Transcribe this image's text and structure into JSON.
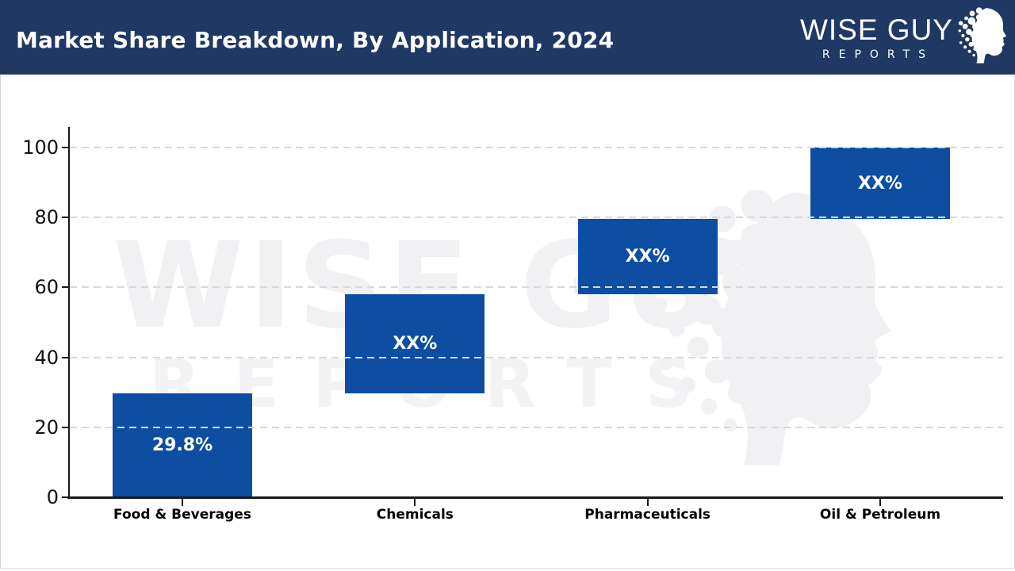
{
  "header": {
    "title": "Market Share Breakdown, By Application, 2024",
    "brand": {
      "name": "WISE GUY",
      "subtitle": "REPORTS"
    }
  },
  "watermark": {
    "line1": "WISE GUY",
    "line2": "REPORTS"
  },
  "colors": {
    "header_bg": "#1f3864",
    "bar": "#0d4da2",
    "gridline": "#d9d9d9",
    "axis": "#1a1a1a",
    "bar_label": "#ffffff",
    "watermark": "#f1f1f4"
  },
  "chart_data": {
    "type": "bar",
    "subtype": "waterfall",
    "title": "Market Share Breakdown, By Application, 2024",
    "categories": [
      "Food & Beverages",
      "Chemicals",
      "Pharmaceuticals",
      "Oil & Petroleum"
    ],
    "segments": [
      {
        "category": "Food & Beverages",
        "start": 0,
        "end": 29.8,
        "label": "29.8%"
      },
      {
        "category": "Chemicals",
        "start": 29.8,
        "end": 58,
        "label": "XX%"
      },
      {
        "category": "Pharmaceuticals",
        "start": 58,
        "end": 79.5,
        "label": "XX%"
      },
      {
        "category": "Oil & Petroleum",
        "start": 79.5,
        "end": 100,
        "label": "XX%"
      }
    ],
    "yticks": [
      0,
      20,
      40,
      60,
      80,
      100
    ],
    "ylim": [
      0,
      105
    ],
    "xlabel": "",
    "ylabel": "",
    "grid": "horizontal dashed, drawn above bars",
    "legend": "none"
  }
}
